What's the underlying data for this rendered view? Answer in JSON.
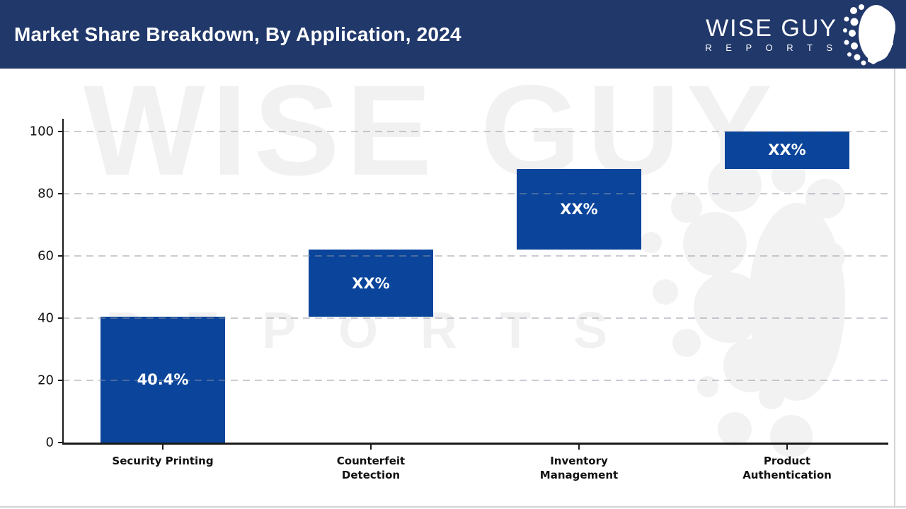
{
  "header": {
    "title": "Market Share Breakdown, By Application, 2024",
    "logo": {
      "line1": "WISE GUY",
      "line2": "R E P O R T S"
    }
  },
  "watermark": {
    "line1": "WISE GUY",
    "line2": "REPORTS"
  },
  "colors": {
    "header_bg": "#21386b",
    "bar": "#0a449b",
    "bar_label": "#ffffff",
    "axis": "#1a1a1a",
    "grid": "#d9d9d9",
    "watermark": "#f1f1f1",
    "title_text": "#ffffff"
  },
  "chart_data": {
    "type": "bar",
    "subtype": "waterfall",
    "title": "Market Share Breakdown, By Application, 2024",
    "xlabel": "",
    "ylabel": "",
    "ylim": [
      0,
      100
    ],
    "yticks": [
      0,
      20,
      40,
      60,
      80,
      100
    ],
    "grid": true,
    "legend": false,
    "categories": [
      "Security Printing",
      "Counterfeit Detection",
      "Inventory Management",
      "Product Authentication"
    ],
    "segments": [
      {
        "category_lines": [
          "Security Printing"
        ],
        "start": 0,
        "end": 40.4,
        "label": "40.4%"
      },
      {
        "category_lines": [
          "Counterfeit",
          "Detection"
        ],
        "start": 40.4,
        "end": 62,
        "label": "XX%"
      },
      {
        "category_lines": [
          "Inventory",
          "Management"
        ],
        "start": 62,
        "end": 88,
        "label": "XX%"
      },
      {
        "category_lines": [
          "Product",
          "Authentication"
        ],
        "start": 88,
        "end": 100,
        "label": "XX%"
      }
    ]
  }
}
